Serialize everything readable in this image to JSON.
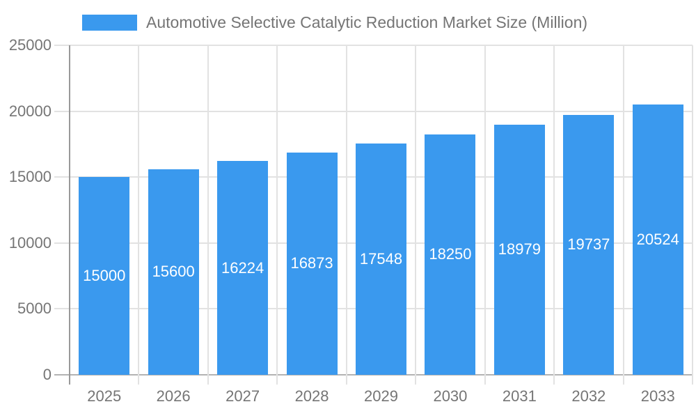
{
  "chart_data": {
    "type": "bar",
    "title": "Automotive Selective Catalytic Reduction Market Size (Million)",
    "categories": [
      "2025",
      "2026",
      "2027",
      "2028",
      "2029",
      "2030",
      "2031",
      "2032",
      "2033"
    ],
    "values": [
      15000,
      15600,
      16224,
      16873,
      17548,
      18250,
      18979,
      19737,
      20524
    ],
    "xlabel": "",
    "ylabel": "",
    "ylim": [
      0,
      25000
    ],
    "yticks": [
      0,
      5000,
      10000,
      15000,
      20000,
      25000
    ],
    "grid": true,
    "legend_position": "top",
    "legend_entries": [
      "Automotive Selective Catalytic Reduction Market Size (Million)"
    ],
    "bar_labels_visible": true
  },
  "colors": {
    "bar": "#3a99ee",
    "grid": "#e2e2e2",
    "y_axis_line": "#999999",
    "x_axis_line": "#b3b3b3",
    "tick_text": "#757575",
    "title_text": "#757575",
    "bar_label_text": "#ffffff",
    "background": "#ffffff"
  }
}
